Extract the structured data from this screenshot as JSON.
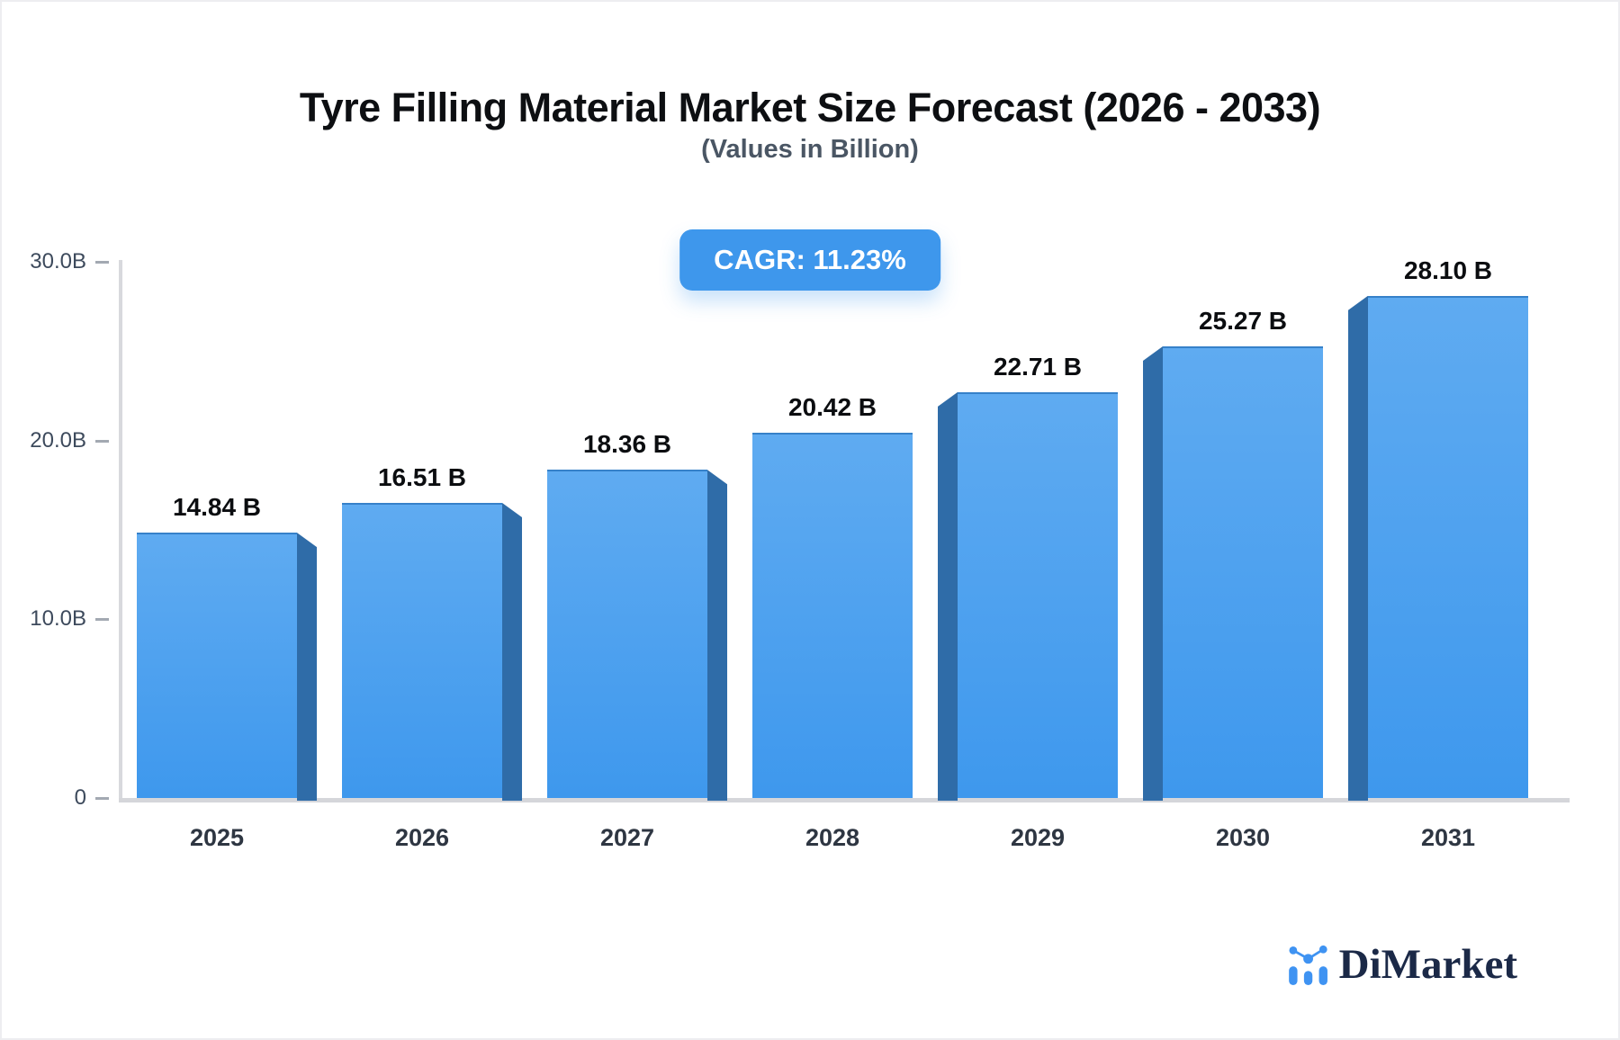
{
  "title": "Tyre Filling Material Market Size Forecast (2026 - 2033)",
  "subtitle": "(Values in Billion)",
  "badge": {
    "label": "CAGR: 11.23%",
    "color": "#3e97ec"
  },
  "logo": {
    "name": "DiMarket",
    "icon": "bar-chart-logo-icon",
    "icon_color": "#3f93f2",
    "text_color": "#1b2947"
  },
  "chart_data": {
    "type": "bar",
    "title": "Tyre Filling Material Market Size Forecast (2026 - 2033)",
    "subtitle": "(Values in Billion)",
    "annotation": "CAGR: 11.23%",
    "categories": [
      "2025",
      "2026",
      "2027",
      "2028",
      "2029",
      "2030",
      "2031"
    ],
    "values": [
      14.84,
      16.51,
      18.36,
      20.42,
      22.71,
      25.27,
      28.1
    ],
    "value_labels": [
      "14.84 B",
      "16.51 B",
      "18.36 B",
      "20.42 B",
      "22.71 B",
      "25.27 B",
      "28.10 B"
    ],
    "xlabel": "",
    "ylabel": "",
    "ylim": [
      0,
      30
    ],
    "y_ticks": [
      {
        "value": 30,
        "label": "30.0B"
      },
      {
        "value": 20,
        "label": "20.0B"
      },
      {
        "value": 10,
        "label": "10.0B"
      },
      {
        "value": 0,
        "label": "0"
      }
    ],
    "grid": false,
    "legend": false,
    "style": "3d-bars-center-perspective",
    "colors": {
      "bar_face_top": "#5fabf1",
      "bar_face_bottom": "#3e98ed",
      "bar_side": "#2f6ca8",
      "axis_line": "#d8d9dd",
      "tick_text": "#3d4a5c",
      "category_text": "#2e3642",
      "value_text": "#0b0d10"
    }
  }
}
